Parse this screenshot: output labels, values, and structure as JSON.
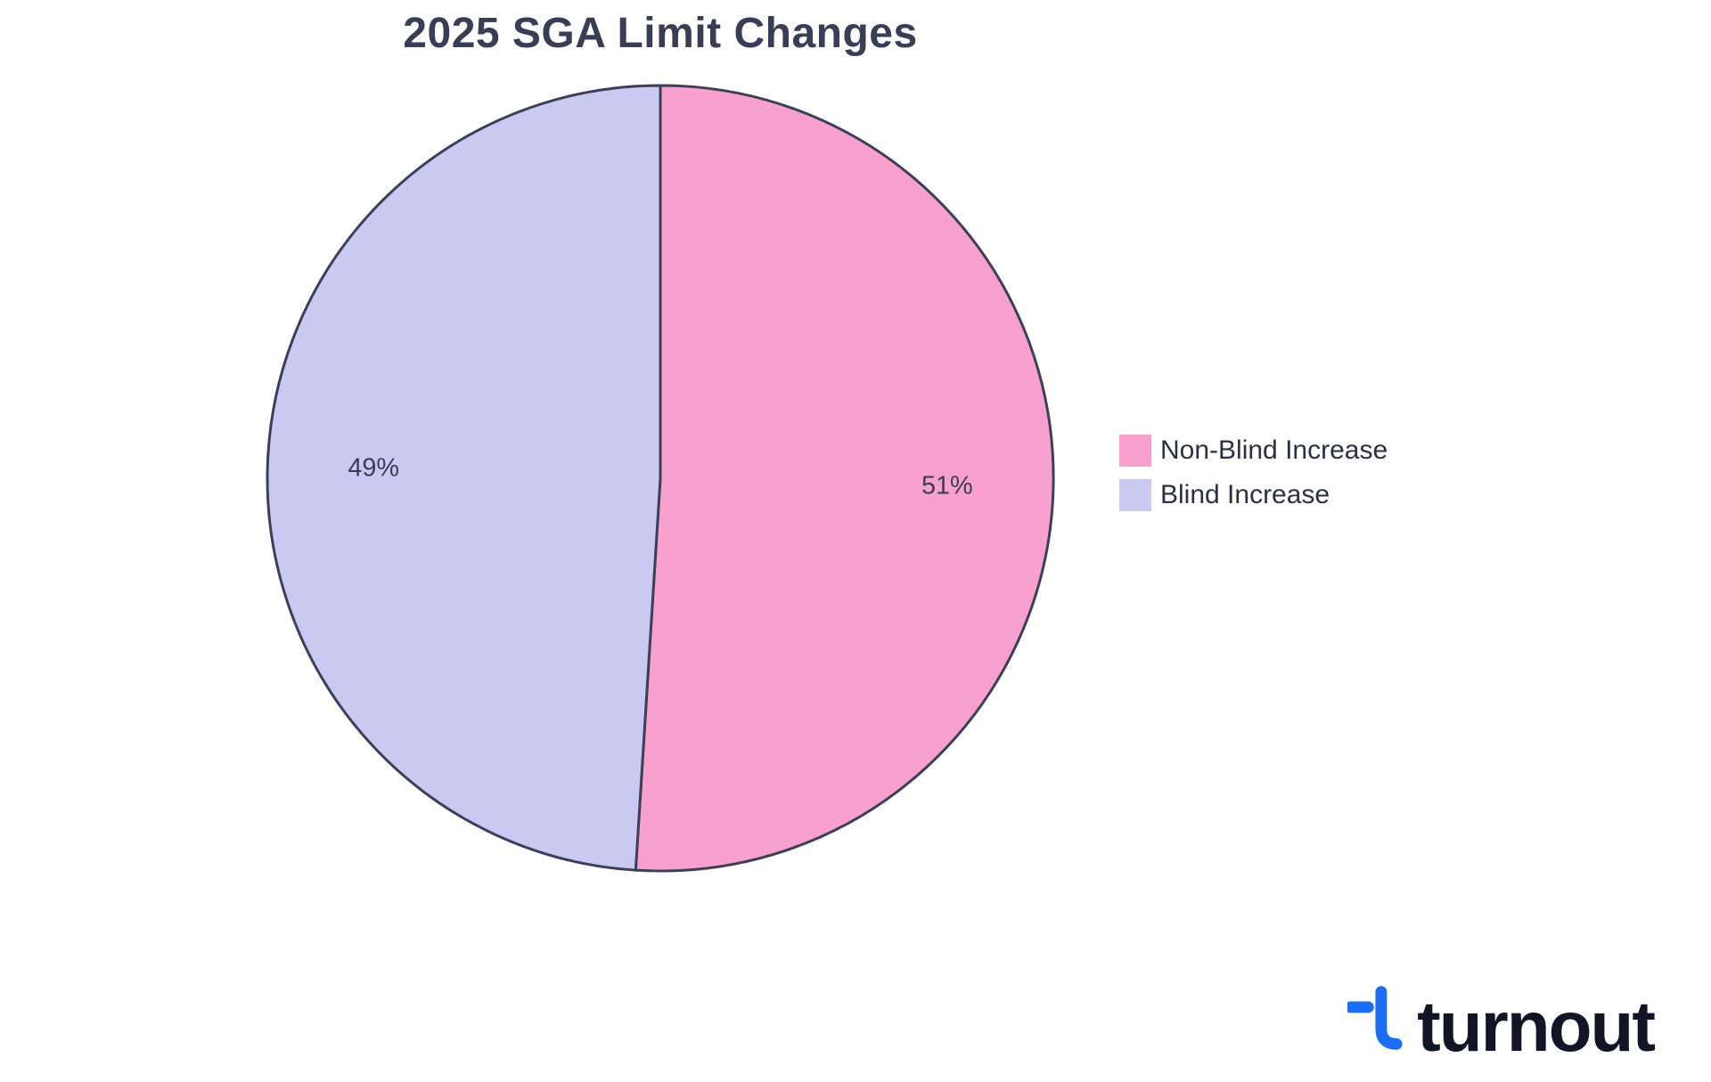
{
  "title": "2025 SGA Limit Changes",
  "chart_data": {
    "type": "pie",
    "title": "2025 SGA Limit Changes",
    "categories": [
      "Non-Blind Increase",
      "Blind Increase"
    ],
    "values": [
      51,
      49
    ],
    "labels": [
      "51%",
      "49%"
    ],
    "colors": [
      "#F8A1CE",
      "#C9C9F2"
    ],
    "stroke_color": "#3B3F58",
    "start_angle_deg": -90,
    "direction": "clockwise",
    "legend_position": "right",
    "label_position": "inside"
  },
  "legend": {
    "items": [
      {
        "label": "Non-Blind Increase",
        "color": "#F8A1CE"
      },
      {
        "label": "Blind Increase",
        "color": "#C9C9F2"
      }
    ]
  },
  "branding": {
    "logo_text": "turnout",
    "logo_color": "#1B6DF3",
    "logo_text_color": "#111526"
  }
}
